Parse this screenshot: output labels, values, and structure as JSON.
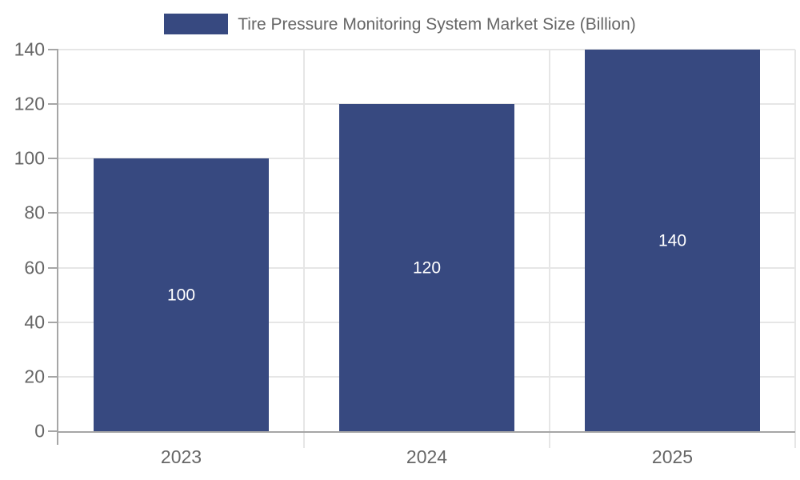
{
  "chart_data": {
    "type": "bar",
    "title": "Tire Pressure Monitoring System Market Size (Billion)",
    "legend_label": "Tire Pressure Monitoring System Market Size (Billion)",
    "legend_position": "top-center",
    "categories": [
      "2023",
      "2024",
      "2025"
    ],
    "values": [
      100,
      120,
      140
    ],
    "bar_value_labels": [
      "100",
      "120",
      "140"
    ],
    "xlabel": "",
    "ylabel": "",
    "ylim": [
      0,
      140
    ],
    "yticks": [
      0,
      20,
      40,
      60,
      80,
      100,
      120,
      140
    ],
    "grid": true,
    "bar_width_fraction": 0.716,
    "colors": {
      "bar": "#374980",
      "grid": "#E6E6E6",
      "axis": "#A6A6A6",
      "tick_text": "#666666",
      "legend_text": "#666666",
      "bar_label_text": "#FFFFFF",
      "background": "#FFFFFF"
    }
  }
}
